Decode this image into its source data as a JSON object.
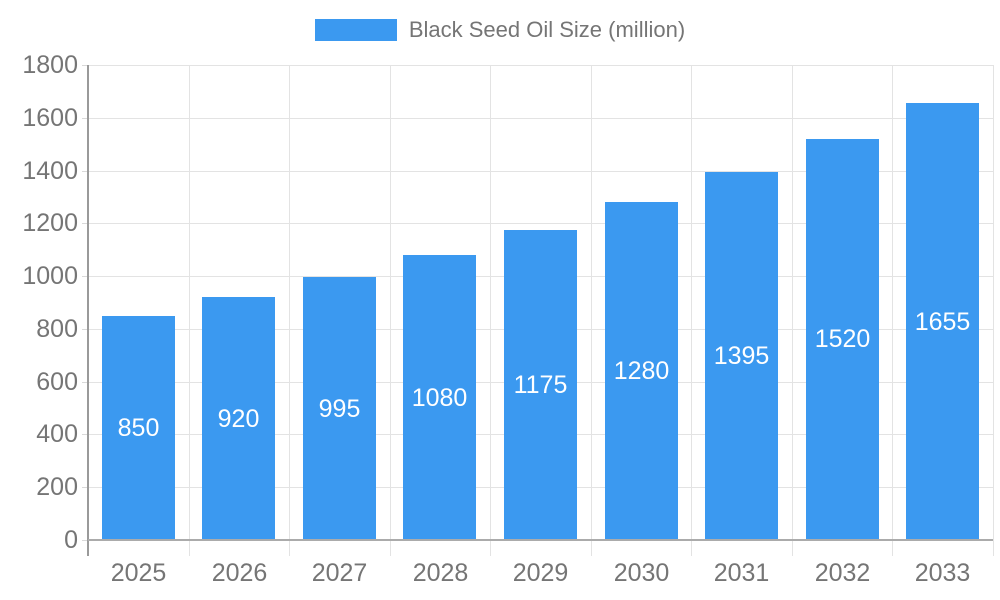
{
  "legend": {
    "label": "Black Seed Oil Size (million)"
  },
  "chart_data": {
    "type": "bar",
    "title": "",
    "xlabel": "",
    "ylabel": "",
    "categories": [
      "2025",
      "2026",
      "2027",
      "2028",
      "2029",
      "2030",
      "2031",
      "2032",
      "2033"
    ],
    "series": [
      {
        "name": "Black Seed Oil Size (million)",
        "values": [
          850,
          920,
          995,
          1080,
          1175,
          1280,
          1395,
          1520,
          1655
        ]
      }
    ],
    "ylim": [
      0,
      1800
    ],
    "yticks": [
      0,
      200,
      400,
      600,
      800,
      1000,
      1200,
      1400,
      1600,
      1800
    ],
    "grid": true,
    "legend_position": "top-center",
    "bar_value_labels_visible": true,
    "colors": {
      "bar": "#3B99F0",
      "value_label": "#FFFFFF",
      "tick_text": "#757575",
      "grid_line": "#E3E3E3",
      "x_axis_line": "#ABABAB",
      "y_axis_line": "#9A9A9A",
      "tick_mark": "#D9D9D9",
      "background": "#FFFFFF"
    }
  }
}
